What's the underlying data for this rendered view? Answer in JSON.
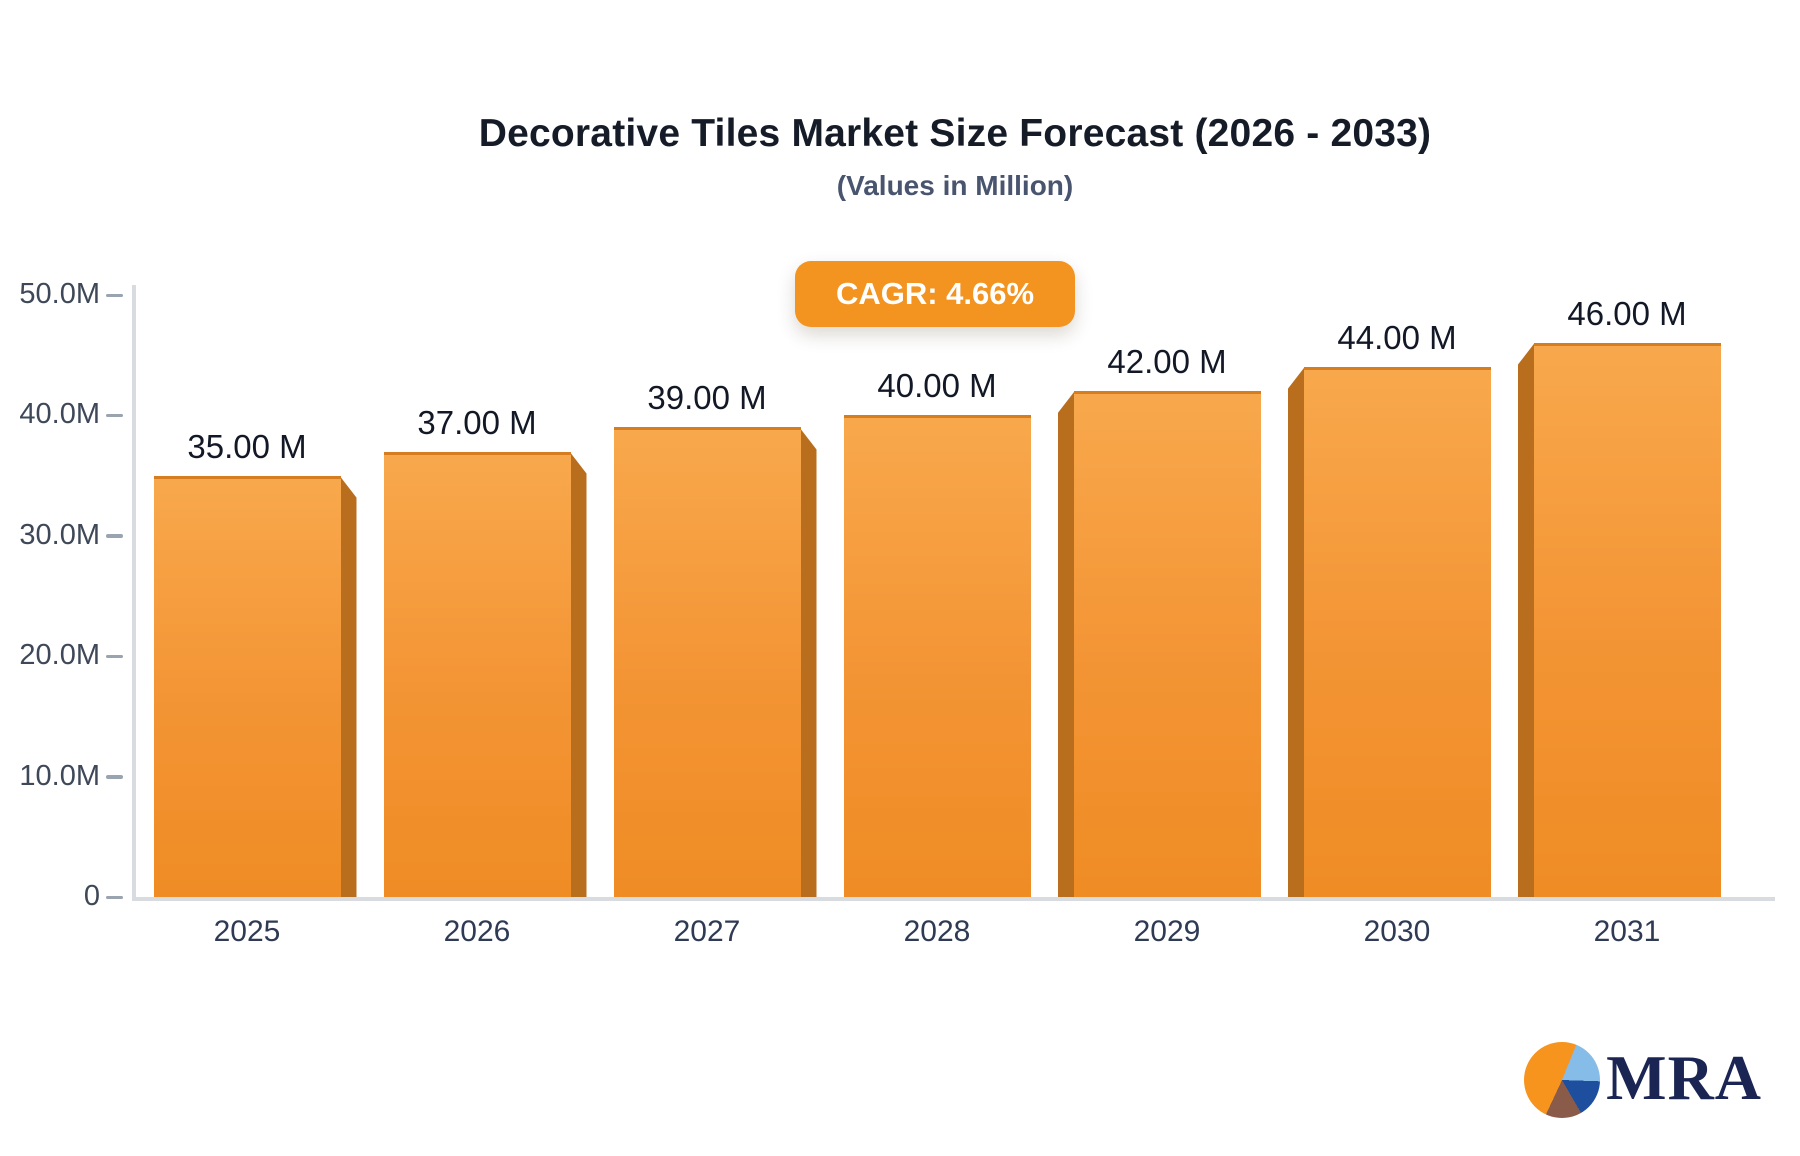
{
  "header": {
    "title": "Decorative Tiles Market Size Forecast (2026 - 2033)",
    "subtitle": "(Values in Million)"
  },
  "badge": {
    "label": "CAGR: 4.66%"
  },
  "chart_data": {
    "type": "bar",
    "title": "Decorative Tiles Market Size Forecast (2026 - 2033)",
    "subtitle": "(Values in Million)",
    "unit": "Million",
    "categories": [
      "2025",
      "2026",
      "2027",
      "2028",
      "2029",
      "2030",
      "2031"
    ],
    "values": [
      35,
      37,
      39,
      40,
      42,
      44,
      46
    ],
    "bar_labels": [
      "35.00 M",
      "37.00 M",
      "39.00 M",
      "40.00 M",
      "42.00 M",
      "44.00 M",
      "46.00 M"
    ],
    "xlabel": "",
    "ylabel": "",
    "ylim": [
      0,
      50
    ],
    "y_ticks": [
      {
        "value": 50,
        "label": "50.0M"
      },
      {
        "value": 40,
        "label": "40.0M"
      },
      {
        "value": 30,
        "label": "30.0M"
      },
      {
        "value": 20,
        "label": "20.0M"
      },
      {
        "value": 10,
        "label": "10.0M"
      },
      {
        "value": 0,
        "label": "0"
      }
    ],
    "grid": false,
    "legend": false,
    "bar_style": "3d-extruded",
    "cagr": "4.66%"
  },
  "logo": {
    "text": "MRA"
  },
  "colors": {
    "badge_bg": "#f39320",
    "bar_face_top": "#f8a84c",
    "bar_face_mid": "#f39434",
    "bar_face_bottom": "#ef8c24",
    "bar_side": "#b96e1e",
    "axis": "#d8dbe0",
    "tick": "#9aa3b0",
    "title_text": "#151c28",
    "subtitle_text": "#49546e",
    "x_label_text": "#2f3a54",
    "y_label_text": "#3e4858",
    "value_label_text": "#121826",
    "logo_navy": "#1a2553",
    "logo_pie_orange": "#f6941e",
    "logo_pie_lightblue": "#85bce8",
    "logo_pie_darkblue": "#1d4f9e",
    "logo_pie_brown": "#8a5b49"
  }
}
